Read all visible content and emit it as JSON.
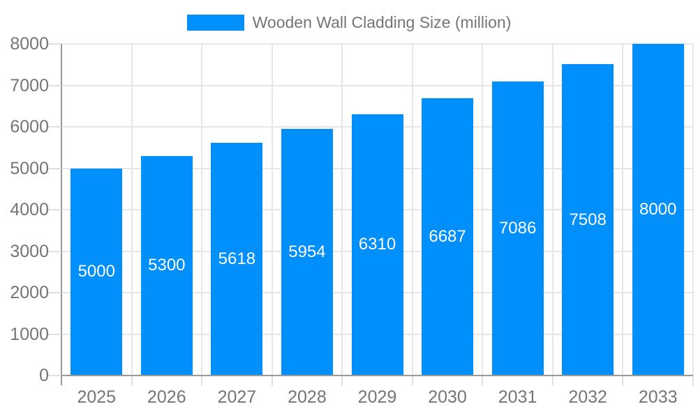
{
  "legend": {
    "label": "Wooden Wall Cladding Size (million)"
  },
  "colors": {
    "bar": "#008FFB",
    "grid": "#e6e6e6",
    "axis": "#999999",
    "tick": "#e0e0e0",
    "axis_text": "#757575",
    "value_text": "#ffffff",
    "background": "#ffffff"
  },
  "chart_data": {
    "type": "bar",
    "title": "Wooden Wall Cladding Size (million)",
    "categories": [
      "2025",
      "2026",
      "2027",
      "2028",
      "2029",
      "2030",
      "2031",
      "2032",
      "2033"
    ],
    "values": [
      5000,
      5300,
      5618,
      5954,
      6310,
      6687,
      7086,
      7508,
      8000
    ],
    "xlabel": "",
    "ylabel": "",
    "ylim": [
      0,
      8000
    ],
    "y_ticks": [
      0,
      1000,
      2000,
      3000,
      4000,
      5000,
      6000,
      7000,
      8000
    ],
    "grid": true,
    "legend_position": "top-center",
    "value_labels": "inside-center",
    "series": [
      {
        "name": "Wooden Wall Cladding Size (million)",
        "values": [
          5000,
          5300,
          5618,
          5954,
          6310,
          6687,
          7086,
          7508,
          8000
        ]
      }
    ]
  }
}
